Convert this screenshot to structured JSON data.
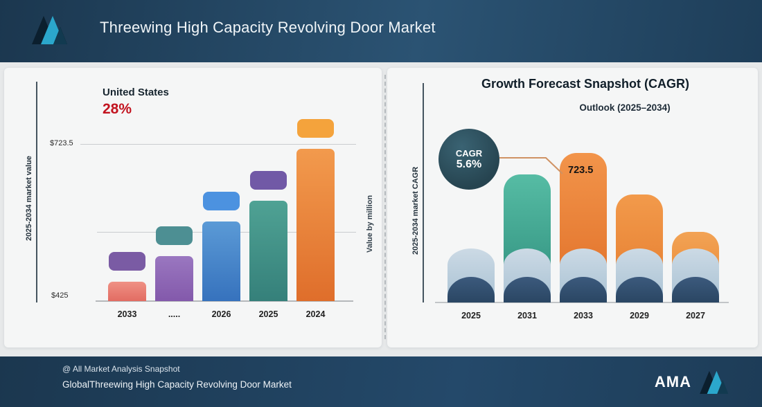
{
  "header": {
    "title": "Threewing High Capacity Revolving Door Market",
    "logo": "AMA"
  },
  "left_chart": {
    "region_label": "United States",
    "highlight_value": "28%",
    "y_axis_label": "2025-2034 market value",
    "y_tick_top": "$723.5",
    "y_tick_bottom": "$425",
    "right_axis_label": "Value by million"
  },
  "right_chart": {
    "title": "Growth Forecast Snapshot (CAGR)",
    "subtitle": "Outlook (2025–2034)",
    "y_axis_label": "2025-2034 market CAGR",
    "badge_label": "CAGR",
    "badge_value": "5.6%",
    "peak_value_label": "723.5"
  },
  "footer": {
    "line1": "@ All Market Analysis Snapshot",
    "line2": "GlobalThreewing High Capacity Revolving Door Market",
    "brand": "AMA"
  },
  "colors": {
    "header_bg": "#244764",
    "accent_red": "#c2131f",
    "badge_bg": "#2c505f",
    "connector": "#cf9263"
  },
  "chart_data": [
    {
      "type": "bar",
      "title": "United States",
      "annotation": "28%",
      "ylabel": "2025-2034 market value",
      "ylabel_right": "Value by million",
      "ylim": [
        425,
        723.5
      ],
      "yticks": [
        "$425",
        "$723.5"
      ],
      "grid": true,
      "legend": false,
      "categories": [
        "2033",
        ".....",
        "2026",
        "2025",
        "2024"
      ],
      "values": [
        462,
        510,
        576,
        616,
        714
      ],
      "bars": [
        {
          "category": "2033",
          "value": 462,
          "color": "#e26c62",
          "color_top": "#ef9185",
          "cap_color": "#7a5ba4"
        },
        {
          "category": ".....",
          "value": 510,
          "color": "#8359ab",
          "color_top": "#9a77c0",
          "cap_color": "#4d8f93"
        },
        {
          "category": "2026",
          "value": 576,
          "color": "#3672bd",
          "color_top": "#5b9ad6",
          "cap_color": "#4c92e0"
        },
        {
          "category": "2025",
          "value": 616,
          "color": "#35807a",
          "color_top": "#4fa294",
          "cap_color": "#7159a6"
        },
        {
          "category": "2024",
          "value": 714,
          "color": "#df6e2b",
          "color_top": "#f29a4d",
          "cap_color": "#f4a33c"
        }
      ]
    },
    {
      "type": "bar",
      "title": "Growth Forecast Snapshot (CAGR)",
      "subtitle": "Outlook (2025–2034)",
      "ylabel": "2025-2034 market CAGR",
      "cagr": "5.6%",
      "ylim": [
        0,
        723.5
      ],
      "grid": false,
      "legend": false,
      "annotated_bar": {
        "category": "2033",
        "label": "723.5"
      },
      "categories": [
        "2025",
        "2031",
        "2033",
        "2029",
        "2027"
      ],
      "values": [
        252,
        619,
        723.5,
        521,
        343
      ],
      "bars": [
        {
          "category": "2025",
          "value": 252,
          "color": "#a8c1d3",
          "color_top": "#ccdae5"
        },
        {
          "category": "2031",
          "value": 619,
          "color": "#2e8d7c",
          "color_top": "#56bca4"
        },
        {
          "category": "2033",
          "value": 723.5,
          "color": "#e06f28",
          "color_top": "#f2944a"
        },
        {
          "category": "2029",
          "value": 521,
          "color": "#e47b2e",
          "color_top": "#f29a4b"
        },
        {
          "category": "2027",
          "value": 343,
          "color": "#e8842f",
          "color_top": "#f2a355"
        }
      ]
    }
  ]
}
